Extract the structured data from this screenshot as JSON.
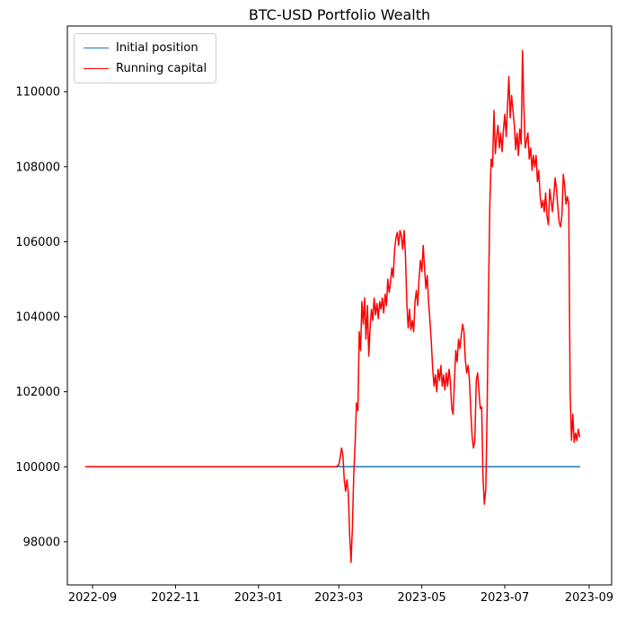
{
  "figure": {
    "title": "BTC-USD Portfolio Wealth",
    "background_color": "#ffffff",
    "spine_color": "#000000"
  },
  "chart_data": {
    "type": "line",
    "title": "BTC-USD Portfolio Wealth",
    "xlabel": "",
    "ylabel": "",
    "grid": false,
    "legend_position": "upper left",
    "x_unit": "days since 2022-09-01",
    "xlim": [
      -18.5,
      381.5
    ],
    "ylim": [
      96850,
      111750
    ],
    "x_ticks": [
      {
        "d": 0,
        "label": "2022-09"
      },
      {
        "d": 61,
        "label": "2022-11"
      },
      {
        "d": 122,
        "label": "2023-01"
      },
      {
        "d": 181,
        "label": "2023-03"
      },
      {
        "d": 242,
        "label": "2023-05"
      },
      {
        "d": 303,
        "label": "2023-07"
      },
      {
        "d": 365,
        "label": "2023-09"
      }
    ],
    "y_ticks": [
      98000,
      100000,
      102000,
      104000,
      106000,
      108000,
      110000
    ],
    "series": [
      {
        "name": "Initial position",
        "color": "#1f77b4",
        "points": [
          [
            -5,
            100000
          ],
          [
            358,
            100000
          ]
        ]
      },
      {
        "name": "Running capital",
        "color": "#ff0000",
        "points": [
          [
            -5,
            100000
          ],
          [
            179,
            100000
          ],
          [
            181,
            100050
          ],
          [
            182,
            100250
          ],
          [
            183,
            100500
          ],
          [
            184,
            100300
          ],
          [
            185,
            99650
          ],
          [
            186,
            99350
          ],
          [
            187,
            99650
          ],
          [
            188,
            99300
          ],
          [
            189,
            98150
          ],
          [
            190,
            97450
          ],
          [
            191,
            98400
          ],
          [
            192,
            99800
          ],
          [
            193,
            100600
          ],
          [
            194,
            101700
          ],
          [
            195,
            101500
          ],
          [
            196,
            103600
          ],
          [
            197,
            103100
          ],
          [
            198,
            104400
          ],
          [
            199,
            103800
          ],
          [
            200,
            104500
          ],
          [
            201,
            103400
          ],
          [
            202,
            104300
          ],
          [
            203,
            102950
          ],
          [
            204,
            103700
          ],
          [
            205,
            104200
          ],
          [
            206,
            103900
          ],
          [
            207,
            104500
          ],
          [
            208,
            104050
          ],
          [
            209,
            104350
          ],
          [
            210,
            103950
          ],
          [
            211,
            104400
          ],
          [
            212,
            104200
          ],
          [
            213,
            104500
          ],
          [
            214,
            104100
          ],
          [
            215,
            104600
          ],
          [
            216,
            104300
          ],
          [
            217,
            105000
          ],
          [
            218,
            104650
          ],
          [
            219,
            104900
          ],
          [
            220,
            105300
          ],
          [
            221,
            105050
          ],
          [
            222,
            105800
          ],
          [
            223,
            106100
          ],
          [
            224,
            106250
          ],
          [
            225,
            105900
          ],
          [
            226,
            106300
          ],
          [
            227,
            106150
          ],
          [
            228,
            105800
          ],
          [
            229,
            106300
          ],
          [
            230,
            105600
          ],
          [
            231,
            104350
          ],
          [
            232,
            103700
          ],
          [
            233,
            104200
          ],
          [
            234,
            103650
          ],
          [
            235,
            103900
          ],
          [
            236,
            103600
          ],
          [
            237,
            104400
          ],
          [
            238,
            104700
          ],
          [
            239,
            104300
          ],
          [
            240,
            105000
          ],
          [
            241,
            105500
          ],
          [
            242,
            105200
          ],
          [
            243,
            105900
          ],
          [
            244,
            105300
          ],
          [
            245,
            104750
          ],
          [
            246,
            105100
          ],
          [
            247,
            104400
          ],
          [
            248,
            103900
          ],
          [
            249,
            103300
          ],
          [
            250,
            102600
          ],
          [
            251,
            102150
          ],
          [
            252,
            102450
          ],
          [
            253,
            102000
          ],
          [
            254,
            102600
          ],
          [
            255,
            102300
          ],
          [
            256,
            102700
          ],
          [
            257,
            102150
          ],
          [
            258,
            102450
          ],
          [
            259,
            102050
          ],
          [
            260,
            102500
          ],
          [
            261,
            102150
          ],
          [
            262,
            102600
          ],
          [
            263,
            102250
          ],
          [
            264,
            101550
          ],
          [
            265,
            101400
          ],
          [
            266,
            102300
          ],
          [
            267,
            103100
          ],
          [
            268,
            102800
          ],
          [
            269,
            103400
          ],
          [
            270,
            103150
          ],
          [
            271,
            103500
          ],
          [
            272,
            103800
          ],
          [
            273,
            103600
          ],
          [
            274,
            102850
          ],
          [
            275,
            102500
          ],
          [
            276,
            102700
          ],
          [
            277,
            102300
          ],
          [
            278,
            101500
          ],
          [
            279,
            100800
          ],
          [
            280,
            100500
          ],
          [
            281,
            100700
          ],
          [
            282,
            102300
          ],
          [
            283,
            102500
          ],
          [
            284,
            102000
          ],
          [
            285,
            101550
          ],
          [
            286,
            101600
          ],
          [
            287,
            99700
          ],
          [
            288,
            99000
          ],
          [
            289,
            99400
          ],
          [
            290,
            101500
          ],
          [
            291,
            104500
          ],
          [
            292,
            107000
          ],
          [
            293,
            108200
          ],
          [
            294,
            108000
          ],
          [
            295,
            109500
          ],
          [
            296,
            108350
          ],
          [
            297,
            108800
          ],
          [
            298,
            109100
          ],
          [
            299,
            108500
          ],
          [
            300,
            108900
          ],
          [
            301,
            108400
          ],
          [
            302,
            109000
          ],
          [
            303,
            109400
          ],
          [
            304,
            108800
          ],
          [
            305,
            109600
          ],
          [
            306,
            110400
          ],
          [
            307,
            109300
          ],
          [
            308,
            109900
          ],
          [
            309,
            109500
          ],
          [
            310,
            109100
          ],
          [
            311,
            108450
          ],
          [
            312,
            108900
          ],
          [
            313,
            108300
          ],
          [
            314,
            109000
          ],
          [
            315,
            108600
          ],
          [
            316,
            111100
          ],
          [
            317,
            109600
          ],
          [
            318,
            108500
          ],
          [
            319,
            108700
          ],
          [
            320,
            108900
          ],
          [
            321,
            108200
          ],
          [
            322,
            108500
          ],
          [
            323,
            107900
          ],
          [
            324,
            108300
          ],
          [
            325,
            108000
          ],
          [
            326,
            108300
          ],
          [
            327,
            107600
          ],
          [
            328,
            107900
          ],
          [
            329,
            107200
          ],
          [
            330,
            106900
          ],
          [
            331,
            107100
          ],
          [
            332,
            106800
          ],
          [
            333,
            107300
          ],
          [
            334,
            106700
          ],
          [
            335,
            106450
          ],
          [
            336,
            107400
          ],
          [
            337,
            107100
          ],
          [
            338,
            106800
          ],
          [
            339,
            107200
          ],
          [
            340,
            107700
          ],
          [
            341,
            107400
          ],
          [
            342,
            106900
          ],
          [
            343,
            106500
          ],
          [
            344,
            106400
          ],
          [
            345,
            106700
          ],
          [
            346,
            107800
          ],
          [
            347,
            107500
          ],
          [
            348,
            107000
          ],
          [
            349,
            107200
          ],
          [
            350,
            107000
          ],
          [
            351,
            102000
          ],
          [
            352,
            100700
          ],
          [
            353,
            101400
          ],
          [
            354,
            100650
          ],
          [
            355,
            100900
          ],
          [
            356,
            100700
          ],
          [
            357,
            101000
          ],
          [
            358,
            100800
          ]
        ]
      }
    ]
  }
}
